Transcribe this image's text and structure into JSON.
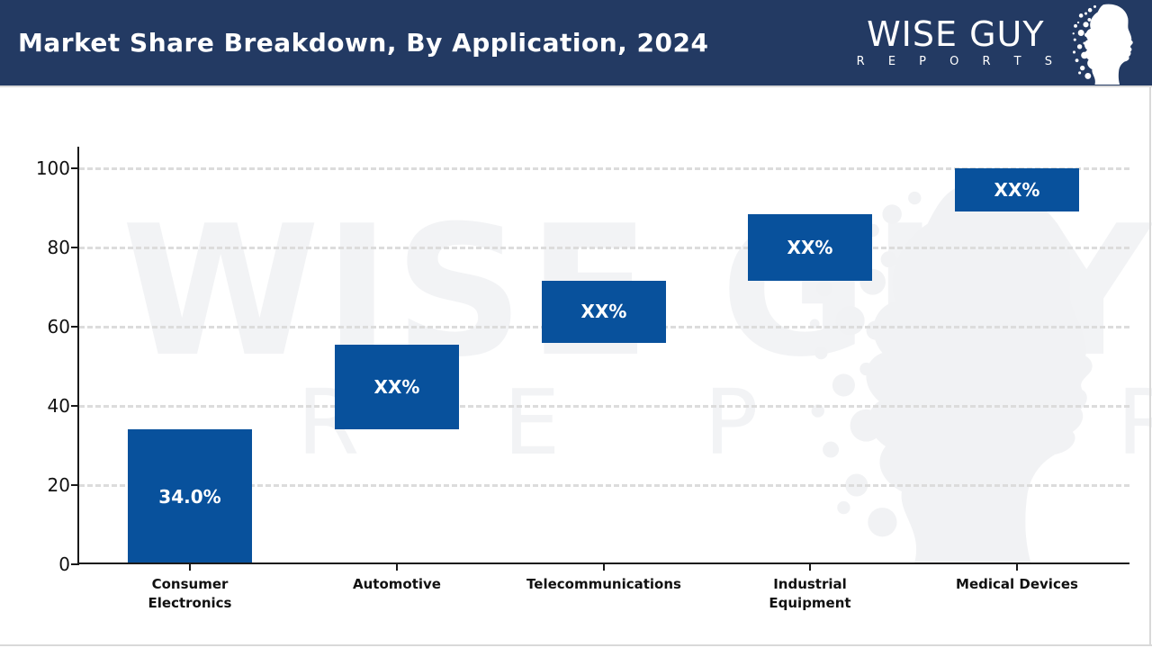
{
  "header": {
    "title": "Market Share Breakdown, By Application, 2024",
    "logo": {
      "line1": "WISE GUY",
      "line2": "R E P O R T S"
    }
  },
  "watermark": {
    "line1": "WISE GUY",
    "line2": "R E P O R T S"
  },
  "chart_data": {
    "type": "bar",
    "subtype": "floating-segment waterfall of market share",
    "title": "Market Share Breakdown, By Application, 2024",
    "categories": [
      "Consumer\nElectronics",
      "Automotive",
      "Telecommunications",
      "Industrial\nEquipment",
      "Medical Devices"
    ],
    "series": [
      {
        "name": "Market share (%)",
        "ranges": [
          [
            0,
            34
          ],
          [
            34,
            55.5
          ],
          [
            56,
            71.5
          ],
          [
            71.5,
            88.5
          ],
          [
            89,
            100
          ]
        ]
      }
    ],
    "bar_labels": [
      "34.0%",
      "XX%",
      "XX%",
      "XX%",
      "XX%"
    ],
    "xlabel": "",
    "ylabel": "",
    "ylim": [
      0,
      105
    ],
    "yticks": [
      0,
      20,
      40,
      60,
      80,
      100
    ],
    "grid": "horizontal dashed",
    "legend": "none"
  },
  "colors": {
    "header_bg": "#233a63",
    "bar": "#08519c",
    "bar_label": "#ffffff",
    "grid": "#dcdcdc",
    "axis": "#1a1a1a",
    "tick_label": "#111111",
    "watermark": "#f2f3f5",
    "page_bg": "#ffffff"
  }
}
